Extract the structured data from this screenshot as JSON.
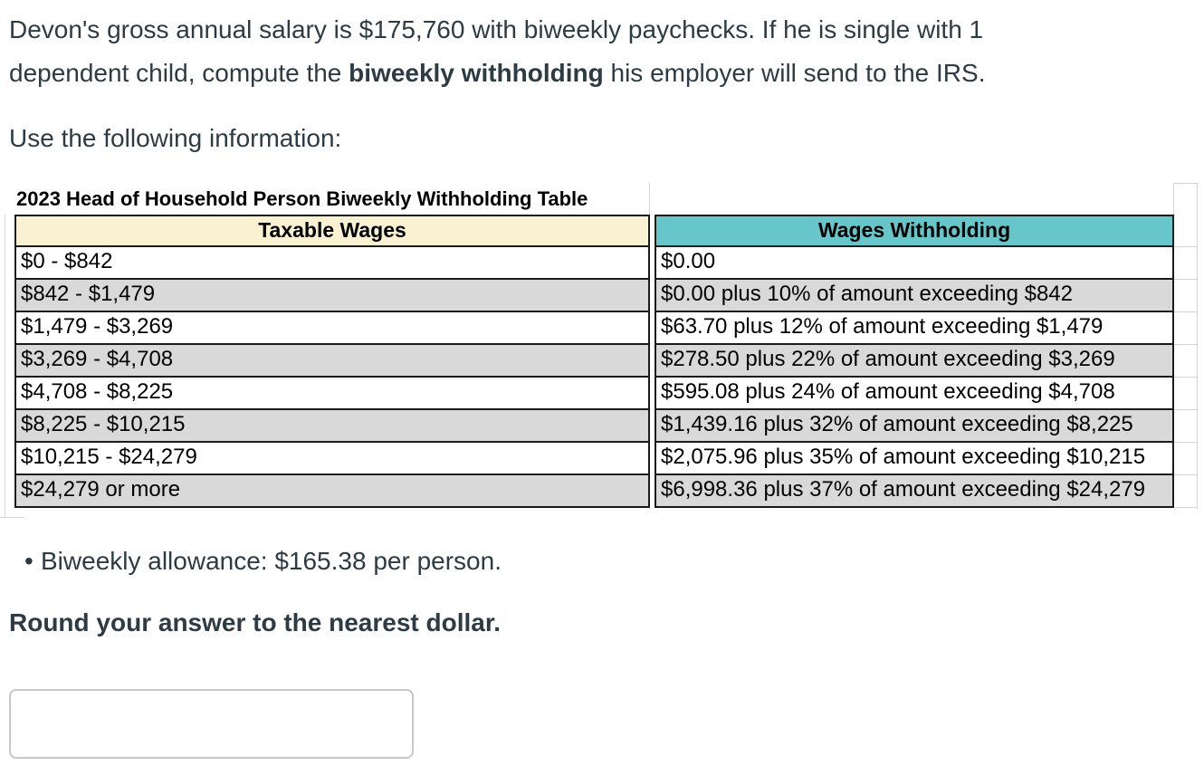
{
  "colors": {
    "body_text": "#2D3B45",
    "table_border_dark": "#1B1B1B",
    "gridline_light": "#D4D4D4",
    "taxable_header_bg": "#FAF0D2",
    "withholding_header_bg": "#66C6C9",
    "alt_row_bg": "#D9D9D9",
    "input_border": "#C7C7C7"
  },
  "question": {
    "intro_line1": "Devon's gross annual salary is $175,760 with biweekly paychecks. If he is single with 1",
    "intro_line2_before_bold": "dependent child, compute the ",
    "intro_line2_bold": "biweekly withholding",
    "intro_line2_after_bold": " his employer will send to the IRS.",
    "instruction": "Use the following information:"
  },
  "table": {
    "title": "2023 Head of Household Person Biweekly Withholding Table",
    "columns": [
      "Taxable Wages",
      "Wages Withholding"
    ],
    "rows": [
      {
        "taxable_wages": "$0 - $842",
        "wages_withholding": "$0.00"
      },
      {
        "taxable_wages": "$842 - $1,479",
        "wages_withholding": "$0.00 plus 10% of amount exceeding $842"
      },
      {
        "taxable_wages": "$1,479 - $3,269",
        "wages_withholding": "$63.70 plus 12% of amount exceeding $1,479"
      },
      {
        "taxable_wages": "$3,269 - $4,708",
        "wages_withholding": "$278.50 plus 22% of amount exceeding $3,269"
      },
      {
        "taxable_wages": "$4,708 - $8,225",
        "wages_withholding": "$595.08 plus 24% of amount exceeding $4,708"
      },
      {
        "taxable_wages": "$8,225 - $10,215",
        "wages_withholding": "$1,439.16 plus 32% of amount exceeding $8,225"
      },
      {
        "taxable_wages": "$10,215 - $24,279",
        "wages_withholding": "$2,075.96 plus 35% of amount exceeding $10,215"
      },
      {
        "taxable_wages": "$24,279 or more",
        "wages_withholding": "$6,998.36 plus 37% of amount exceeding $24,279"
      }
    ]
  },
  "allowance_bullet": "Biweekly allowance: $165.38 per person.",
  "bullet_glyph": "•",
  "rounding_note": "Round your answer to the nearest dollar.",
  "answer_input": {
    "value": ""
  }
}
